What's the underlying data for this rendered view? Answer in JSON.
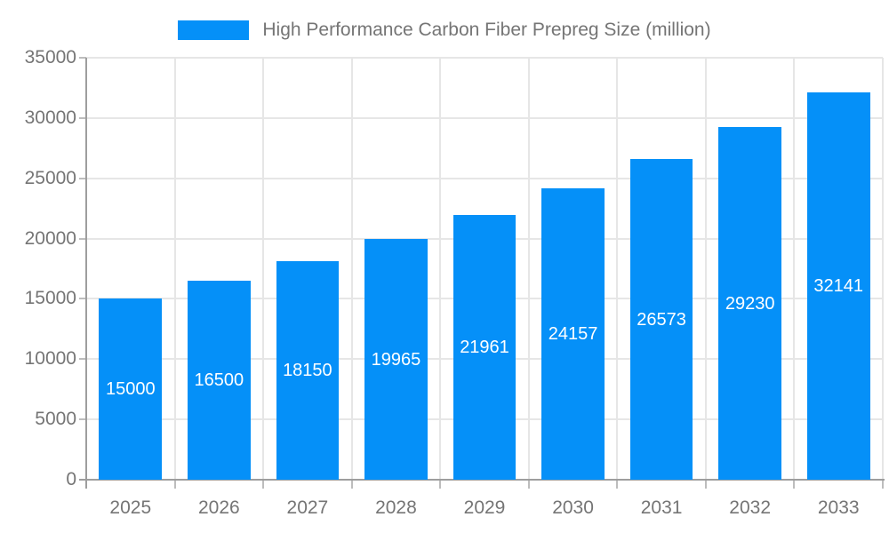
{
  "legend": {
    "label": "High Performance Carbon Fiber Prepreg Size (million)"
  },
  "chart_data": {
    "type": "bar",
    "title": "High Performance Carbon Fiber Prepreg Size (million)",
    "categories": [
      "2025",
      "2026",
      "2027",
      "2028",
      "2029",
      "2030",
      "2031",
      "2032",
      "2033"
    ],
    "values": [
      15000,
      16500,
      18150,
      19965,
      21961,
      24157,
      26573,
      29230,
      32141
    ],
    "xlabel": "",
    "ylabel": "",
    "ylim": [
      0,
      35000
    ],
    "yticks": [
      0,
      5000,
      10000,
      15000,
      20000,
      25000,
      30000,
      35000
    ],
    "grid": true,
    "legend_position": "top-center",
    "bar_label_position": "inside-middle",
    "colors": {
      "bar": "#0590f8",
      "bar_label": "#ffffff",
      "axis_text": "#757575",
      "axis_line": "#9e9e9e",
      "grid_line": "#e6e6e6",
      "tick_mark": "#bdbdbd"
    }
  }
}
